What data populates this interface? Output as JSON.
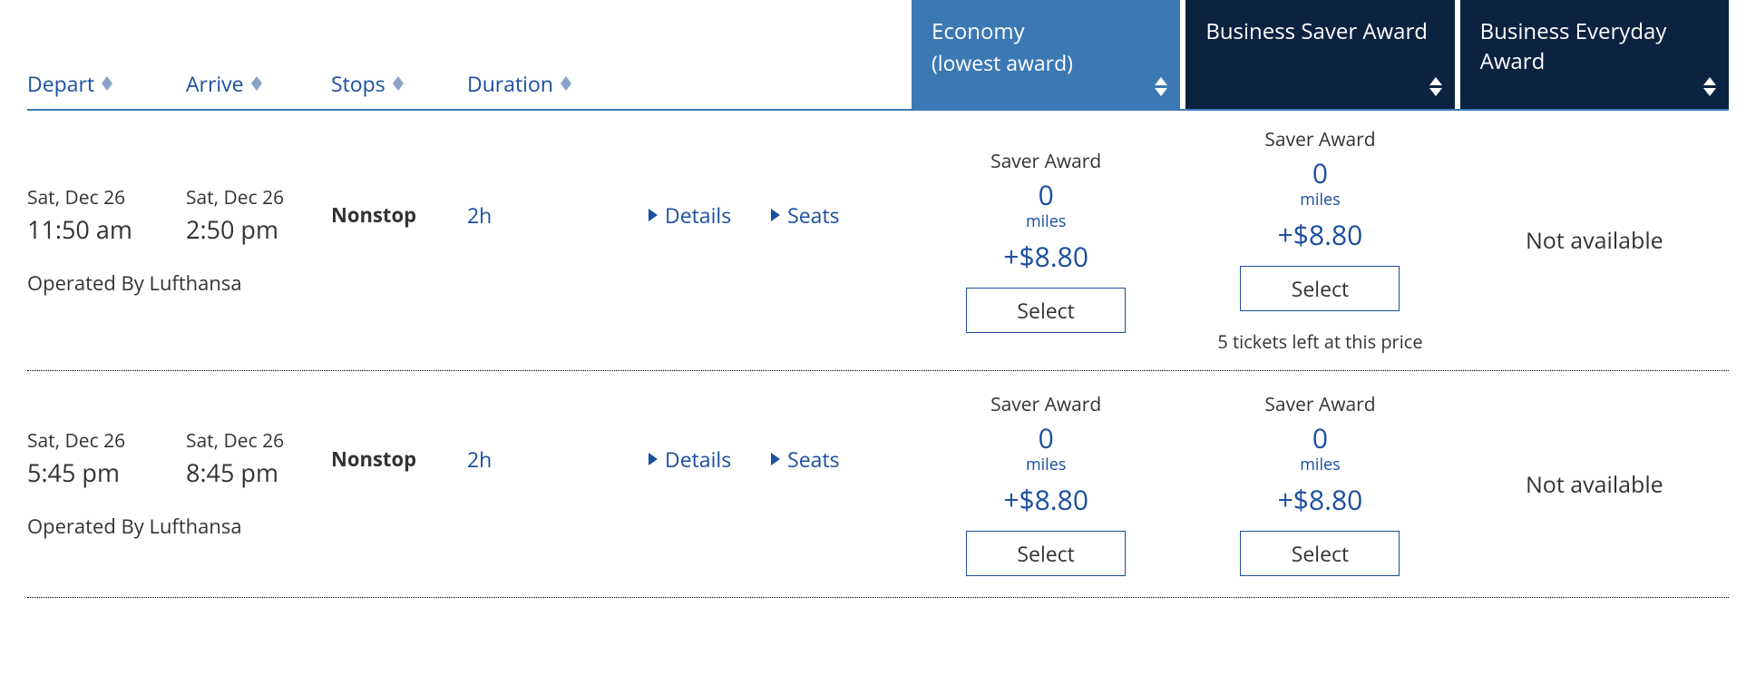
{
  "colors": {
    "link": "#1b4fa0",
    "economy_header_bg": "#3c78b4",
    "dark_header_bg": "#0c2340",
    "header_text": "#ffffff",
    "text": "#333333",
    "row_divider": "#000000"
  },
  "columns": {
    "depart": "Depart",
    "arrive": "Arrive",
    "stops": "Stops",
    "duration": "Duration"
  },
  "fare_columns": [
    {
      "title": "Economy",
      "subtitle": "(lowest award)",
      "style": "economy"
    },
    {
      "title": "Business Saver Award",
      "subtitle": "",
      "style": "dark"
    },
    {
      "title": "Business Everyday Award",
      "subtitle": "",
      "style": "dark"
    }
  ],
  "links": {
    "details": "Details",
    "seats": "Seats"
  },
  "labels": {
    "select": "Select",
    "not_available": "Not available",
    "miles_label": "miles"
  },
  "flights": [
    {
      "depart_date": "Sat, Dec 26",
      "depart_time": "11:50 am",
      "arrive_date": "Sat, Dec 26",
      "arrive_time": "2:50 pm",
      "stops": "Nonstop",
      "duration": "2h",
      "operated_by": "Operated By Lufthansa",
      "fares": [
        {
          "available": true,
          "award_type": "Saver Award",
          "miles": "0",
          "price": "+$8.80",
          "tickets_left": ""
        },
        {
          "available": true,
          "award_type": "Saver Award",
          "miles": "0",
          "price": "+$8.80",
          "tickets_left": "5 tickets left at this price"
        },
        {
          "available": false
        }
      ]
    },
    {
      "depart_date": "Sat, Dec 26",
      "depart_time": "5:45 pm",
      "arrive_date": "Sat, Dec 26",
      "arrive_time": "8:45 pm",
      "stops": "Nonstop",
      "duration": "2h",
      "operated_by": "Operated By Lufthansa",
      "fares": [
        {
          "available": true,
          "award_type": "Saver Award",
          "miles": "0",
          "price": "+$8.80",
          "tickets_left": ""
        },
        {
          "available": true,
          "award_type": "Saver Award",
          "miles": "0",
          "price": "+$8.80",
          "tickets_left": ""
        },
        {
          "available": false
        }
      ]
    }
  ]
}
